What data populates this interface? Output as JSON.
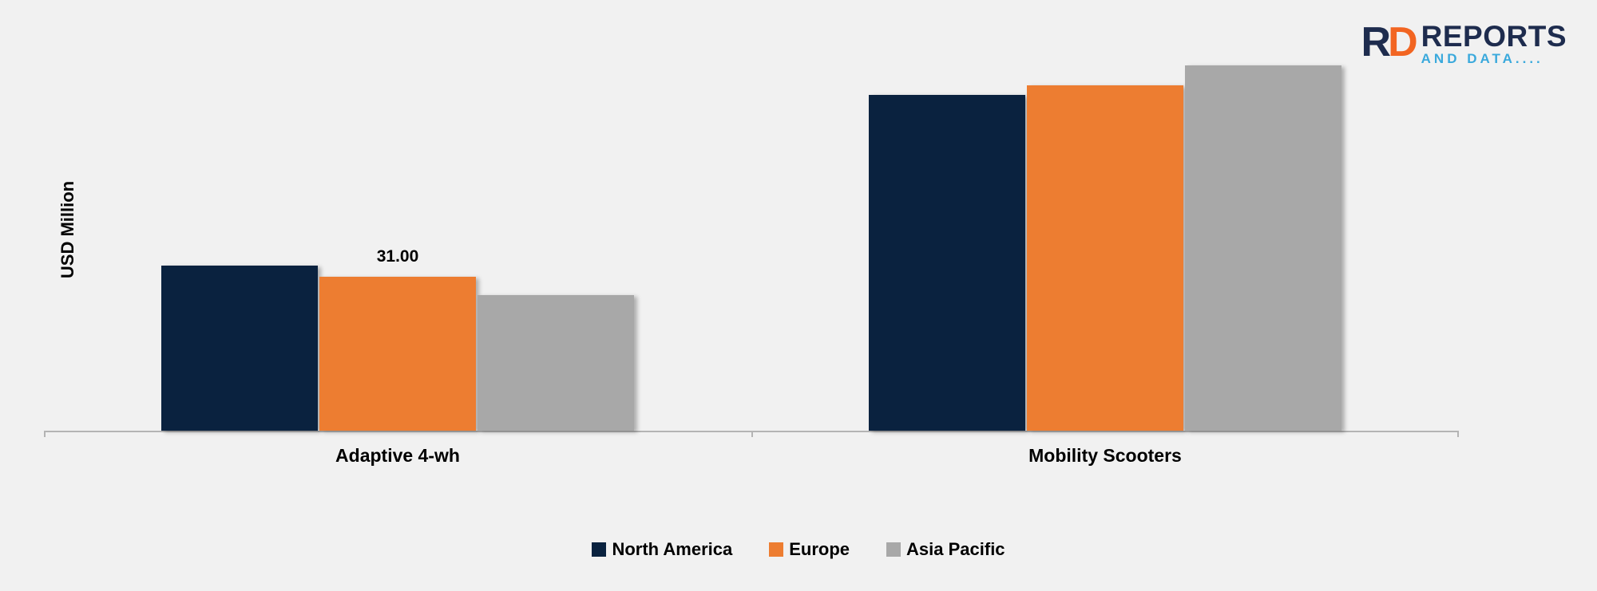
{
  "app": {
    "background_color": "#f1f1f1",
    "axis_color": "#b4b4b4"
  },
  "logo": {
    "mark_r": "R",
    "mark_d": "D",
    "line1": "REPORTS",
    "line2": "AND DATA....",
    "navy": "#1e2c4e",
    "orange": "#f26522",
    "blue": "#3aa9dc"
  },
  "chart_data": {
    "type": "bar",
    "title": "",
    "xlabel": "",
    "ylabel": "USD Million",
    "categories": [
      "Adaptive 4-wh",
      "Mobility Scooters"
    ],
    "series": [
      {
        "name": "North America",
        "color": "#0a223f",
        "values": [
          33.2,
          67.6
        ]
      },
      {
        "name": "Europe",
        "color": "#ed7d31",
        "values": [
          31.0,
          69.6
        ]
      },
      {
        "name": "Asia Pacific",
        "color": "#a8a8a8",
        "values": [
          27.3,
          73.5
        ]
      }
    ],
    "data_labels": [
      {
        "series_index": 1,
        "category_index": 0,
        "text": "31.00"
      }
    ],
    "ylim": [
      0,
      80
    ],
    "grid": false,
    "legend_position": "bottom",
    "y_axis_ticks_visible": false
  }
}
